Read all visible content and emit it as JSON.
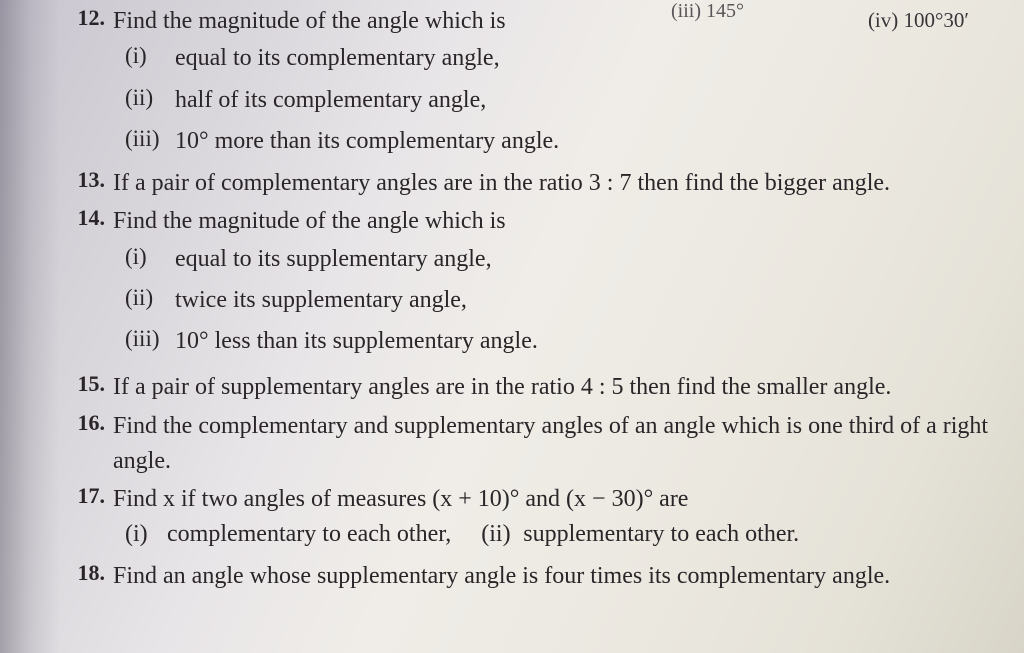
{
  "partial_top": "(iii) 145°",
  "top_right": "(iv) 100°30′",
  "q12": {
    "num": "12.",
    "text": "Find the magnitude of the angle which is",
    "subs": [
      {
        "n": "(i)",
        "t": "equal to its complementary angle,"
      },
      {
        "n": "(ii)",
        "t": "half of its complementary angle,"
      },
      {
        "n": "(iii)",
        "t": "10° more than its complementary angle."
      }
    ]
  },
  "q13": {
    "num": "13.",
    "text": "If a pair of complementary angles are in the ratio 3 : 7 then find the bigger angle."
  },
  "q14": {
    "num": "14.",
    "text": "Find the magnitude of the angle which is",
    "subs": [
      {
        "n": "(i)",
        "t": "equal to its supplementary angle,"
      },
      {
        "n": "(ii)",
        "t": "twice its supplementary angle,"
      },
      {
        "n": "(iii)",
        "t": "10° less than its supplementary angle."
      }
    ]
  },
  "q15": {
    "num": "15.",
    "text": "If a pair of supplementary angles are in the ratio 4 : 5 then find the smaller angle."
  },
  "q16": {
    "num": "16.",
    "text_line1": "Find the complementary and supplementary angles of an angle which is one third of a right",
    "text_line2": "angle."
  },
  "q17": {
    "num": "17.",
    "text": "Find x if two angles of measures (x + 10)° and (x − 30)° are",
    "subs": [
      {
        "n": "(i)",
        "t": "complementary to each other,"
      },
      {
        "n": "(ii)",
        "t": "supplementary to each other."
      }
    ]
  },
  "q18": {
    "num": "18.",
    "text": "Find an angle whose supplementary angle is four times its complementary angle."
  }
}
